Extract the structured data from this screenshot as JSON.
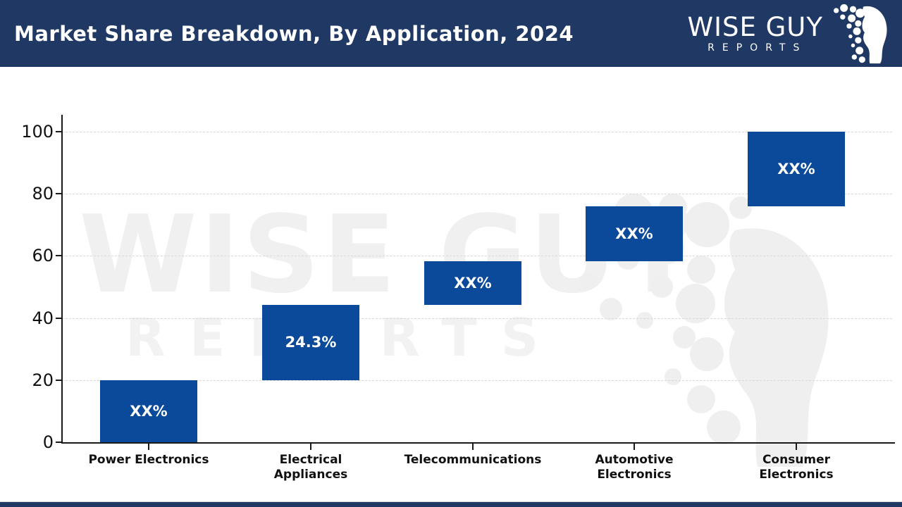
{
  "header": {
    "title": "Market Share Breakdown, By Application, 2024",
    "bg_color": "#203864",
    "brand": {
      "line1": "WISE GUY",
      "line2": "REPORTS"
    }
  },
  "watermark": {
    "line1": "WISE GUY",
    "line2": "REPORTS"
  },
  "chart_data": {
    "type": "bar",
    "variant": "waterfall-floating-bars",
    "title": "Market Share Breakdown, By Application, 2024",
    "categories": [
      "Power Electronics",
      "Electrical\nAppliances",
      "Telecommunications",
      "Automotive\nElectronics",
      "Consumer\nElectronics"
    ],
    "segments": [
      {
        "category": "Power Electronics",
        "start": 0,
        "end": 20,
        "label": "XX%"
      },
      {
        "category": "Electrical Appliances",
        "start": 20,
        "end": 44.3,
        "label": "24.3%"
      },
      {
        "category": "Telecommunications",
        "start": 44.3,
        "end": 58.3,
        "label": "XX%"
      },
      {
        "category": "Automotive Electronics",
        "start": 58.3,
        "end": 75.9,
        "label": "XX%"
      },
      {
        "category": "Consumer Electronics",
        "start": 75.9,
        "end": 100,
        "label": "XX%"
      }
    ],
    "xlabel": "",
    "ylabel": "",
    "ylim": [
      0,
      100
    ],
    "yticks": [
      0,
      20,
      40,
      60,
      80,
      100
    ],
    "grid": "horizontal dashed",
    "legend": "none",
    "bar_color": "#0b4a9b",
    "label_color": "#ffffff"
  },
  "footer": {
    "bg_color": "#203864"
  }
}
